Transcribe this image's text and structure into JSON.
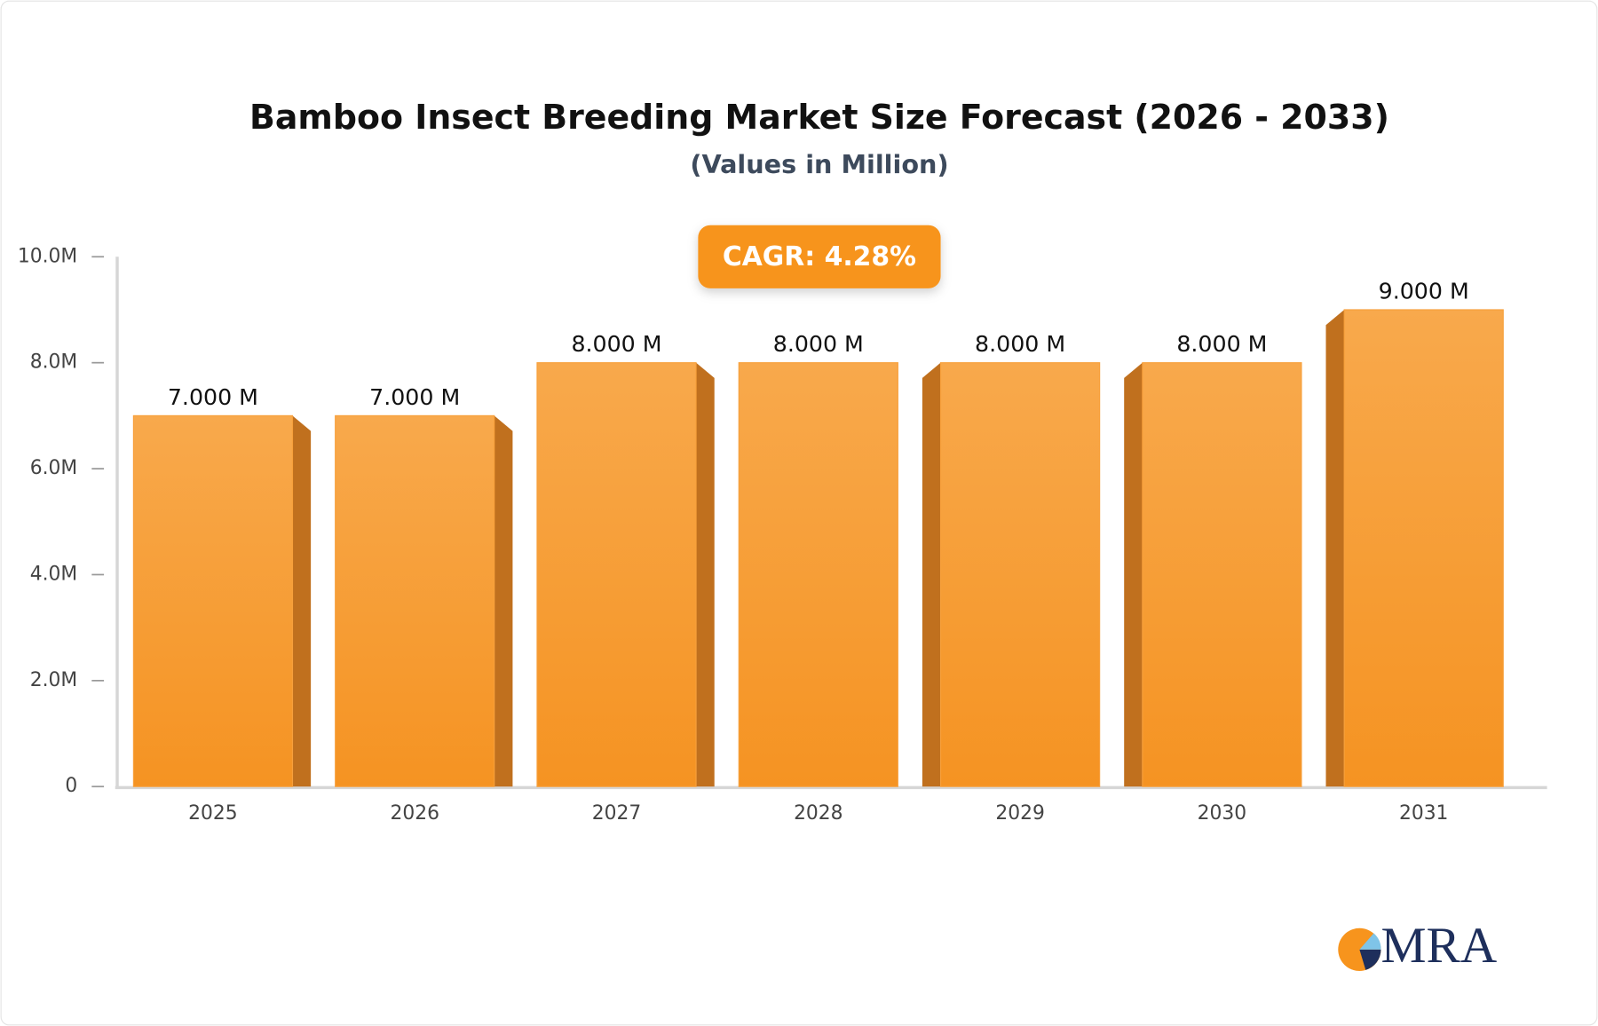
{
  "chart_data": {
    "type": "bar",
    "title": "Bamboo Insect Breeding Market Size Forecast (2026 - 2033)",
    "subtitle": "(Values in Million)",
    "annotation": "CAGR: 4.28%",
    "logo": "MRA",
    "categories": [
      "2025",
      "2026",
      "2027",
      "2028",
      "2029",
      "2030",
      "2031"
    ],
    "values": [
      7,
      7,
      8,
      8,
      8,
      8,
      9
    ],
    "value_labels": [
      "7.000 M",
      "7.000 M",
      "8.000 M",
      "8.000 M",
      "8.000 M",
      "8.000 M",
      "9.000 M"
    ],
    "color": "#f7a03c",
    "ylim": [
      0,
      10
    ],
    "yticks": [
      0,
      {
        "value": 2,
        "label": "2.0M"
      },
      {
        "value": 4,
        "label": "4.0M"
      },
      {
        "value": 6,
        "label": "6.0M"
      },
      {
        "value": 8,
        "label": "8.0M"
      },
      {
        "value": 10,
        "label": "10.0M"
      }
    ],
    "grid": false
  }
}
